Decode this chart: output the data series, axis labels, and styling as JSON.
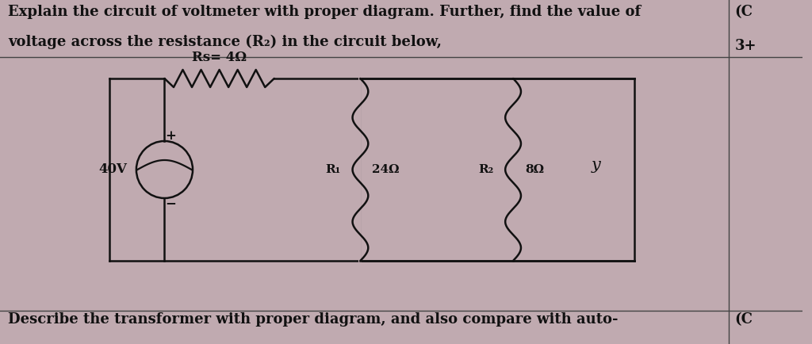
{
  "title_line1": "Explain the circuit of voltmeter with proper diagram. Further, find the value of",
  "title_line2": "voltage across the resistance (R₂) in the circuit below,",
  "side_label": "(C",
  "side_number": "3+",
  "bottom_text": "Describe the transformer with proper diagram, and also compare with auto-",
  "bottom_label": "(C",
  "rs_label": "Rs= 4Ω",
  "v_label": "40V",
  "r1_label": "R₁",
  "r1_val": "24Ω",
  "r2_label": "R₂",
  "r2_val": "8Ω",
  "y_label": "y",
  "bg_color": "#c0aab0",
  "line_color": "#111111",
  "text_color": "#111111",
  "font_size_title": 13,
  "font_size_labels": 11
}
